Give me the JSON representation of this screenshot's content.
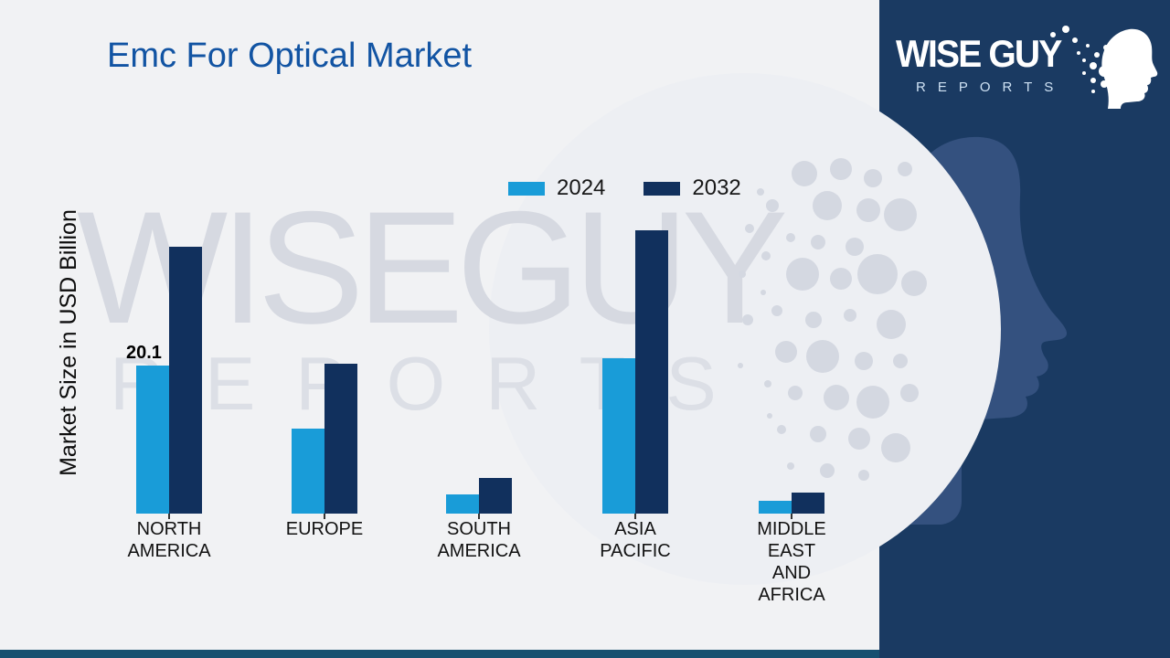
{
  "page": {
    "background_color": "#f1f2f4",
    "footer_color": "#175070",
    "panel_color": "#1a3a62"
  },
  "header": {
    "title": "Emc For Optical Market",
    "title_color": "#1254a3"
  },
  "brand_logo": {
    "name": "WISE GUY",
    "sub": "REPORTS",
    "face_icon": "face-profile-icon"
  },
  "watermark": {
    "line1": "WISEGUY",
    "line2": "REPORTS",
    "face_icon": "face-dots-watermark"
  },
  "chart_data": {
    "type": "bar",
    "title": "Emc For Optical Market",
    "ylabel": "Market Size in USD Billion",
    "unit": "USD Billion",
    "categories": [
      "NORTH AMERICA",
      "EUROPE",
      "SOUTH AMERICA",
      "ASIA PACIFIC",
      "MIDDLE EAST AND AFRICA"
    ],
    "category_lines": [
      [
        "NORTH",
        "AMERICA"
      ],
      [
        "EUROPE"
      ],
      [
        "SOUTH",
        "AMERICA"
      ],
      [
        "ASIA",
        "PACIFIC"
      ],
      [
        "MIDDLE",
        "EAST",
        "AND",
        "AFRICA"
      ]
    ],
    "series": [
      {
        "name": "2024",
        "color": "#199cd8",
        "values": [
          20.1,
          11.5,
          2.6,
          21.1,
          1.7
        ]
      },
      {
        "name": "2032",
        "color": "#11305d",
        "values": [
          36.2,
          20.3,
          4.8,
          38.5,
          2.9
        ]
      }
    ],
    "ylim": [
      0,
      45
    ],
    "grid": false,
    "legend_position": "top-center",
    "data_labels": [
      {
        "series_index": 0,
        "category_index": 0,
        "text": "20.1"
      }
    ]
  }
}
